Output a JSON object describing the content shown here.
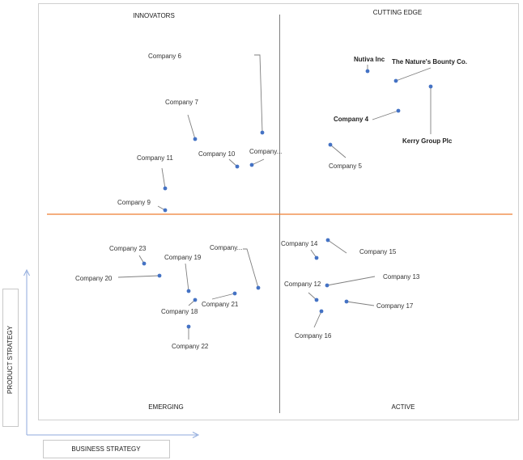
{
  "chart_data": {
    "type": "scatter",
    "quadrants": {
      "top_left": "INNOVATORS",
      "top_right": "CUTTING EDGE",
      "bottom_left": "EMERGING",
      "bottom_right": "ACTIVE"
    },
    "xlabel": "BUSINESS STRATEGY",
    "ylabel": "PRODUCT STRATEGY",
    "colors": {
      "point": "#4472c4",
      "horizontal_divider": "#ed7d31",
      "vertical_divider": "#7f7f7f",
      "leader_line": "#7f7f7f",
      "axis_arrow": "#8faadc",
      "frame": "#d0d0d0"
    },
    "points": [
      {
        "name": "Company 6"
      },
      {
        "name": "Company 7"
      },
      {
        "name": "Company 11"
      },
      {
        "name": "Company 10"
      },
      {
        "name": "Company..."
      },
      {
        "name": "Company 9"
      },
      {
        "name": "Nutiva Inc"
      },
      {
        "name": "The Nature's Bounty Co."
      },
      {
        "name": "Kerry Group Plc"
      },
      {
        "name": "Company 4"
      },
      {
        "name": "Company 5"
      },
      {
        "name": "Company 23"
      },
      {
        "name": "Company 19"
      },
      {
        "name": "Company 20"
      },
      {
        "name": "Company..."
      },
      {
        "name": "Company 18"
      },
      {
        "name": "Company 21"
      },
      {
        "name": "Company 22"
      },
      {
        "name": "Company 14"
      },
      {
        "name": "Company 15"
      },
      {
        "name": "Company 12"
      },
      {
        "name": "Company 13"
      },
      {
        "name": "Company 17"
      },
      {
        "name": "Company 16"
      }
    ]
  }
}
